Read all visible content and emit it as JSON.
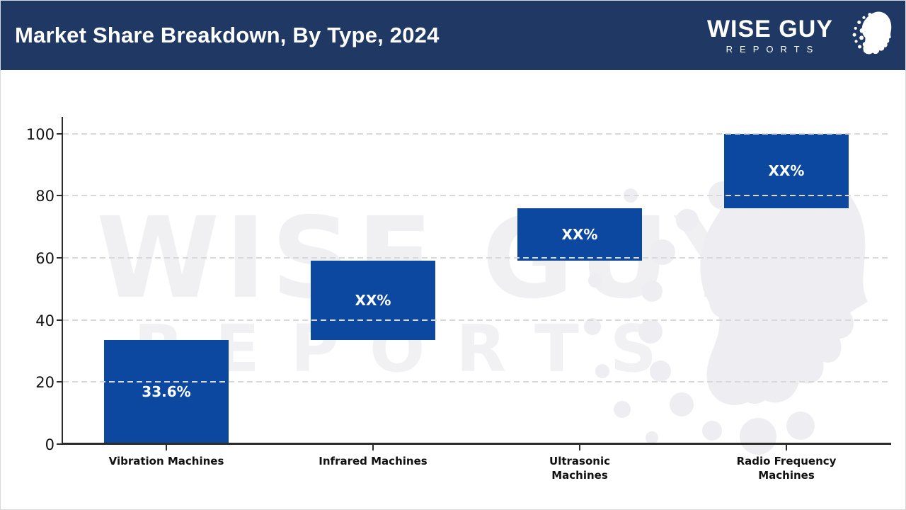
{
  "header": {
    "title": "Market Share Breakdown, By Type, 2024",
    "bg_color": "#1f3864",
    "logo": {
      "line1": "WISE GUY",
      "line2": "REPORTS"
    }
  },
  "watermark": {
    "line1": "WISE GUY",
    "line2": "REPORTS"
  },
  "chart_data": {
    "type": "bar",
    "subtype": "floating-waterfall",
    "title": "Market Share Breakdown, By Type, 2024",
    "categories": [
      "Vibration Machines",
      "Infrared Machines",
      "Ultrasonic Machines",
      "Radio Frequency Machines"
    ],
    "category_lines": [
      [
        "Vibration Machines"
      ],
      [
        "Infrared Machines"
      ],
      [
        "Ultrasonic",
        "Machines"
      ],
      [
        "Radio Frequency",
        "Machines"
      ]
    ],
    "segments": [
      {
        "category": "Vibration Machines",
        "start": 0,
        "end": 33.6,
        "label": "33.6%"
      },
      {
        "category": "Infrared Machines",
        "start": 33.6,
        "end": 59,
        "label": "XX%"
      },
      {
        "category": "Ultrasonic Machines",
        "start": 59,
        "end": 76,
        "label": "XX%"
      },
      {
        "category": "Radio Frequency Machines",
        "start": 76,
        "end": 100,
        "label": "XX%"
      }
    ],
    "ylim": [
      0,
      100
    ],
    "yticks": [
      0,
      20,
      40,
      60,
      80,
      100
    ],
    "xlabel": "",
    "ylabel": "",
    "grid": "horizontal-dashed",
    "legend": "none",
    "bar_color": "#0d48a0",
    "bar_label_color": "#ffffff",
    "axis_color": "#2b2b2b",
    "gridline_color": "#d9d9d9"
  }
}
